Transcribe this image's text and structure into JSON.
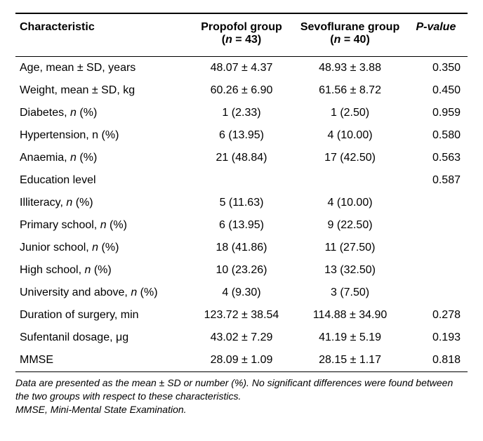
{
  "table": {
    "type": "table",
    "background_color": "#ffffff",
    "text_color": "#000000",
    "rule_color": "#000000",
    "font_family": "Arial",
    "body_fontsize": 15,
    "header_fontsize": 15,
    "columns": [
      {
        "key": "characteristic",
        "label": "Characteristic",
        "align": "left",
        "width_pct": 38
      },
      {
        "key": "propofol",
        "label": "Propofol group",
        "align": "center",
        "width_pct": 24,
        "n": 43
      },
      {
        "key": "sevoflurane",
        "label": "Sevoflurane group",
        "align": "center",
        "width_pct": 24,
        "n": 40
      },
      {
        "key": "pvalue",
        "label": "P-value",
        "align": "right",
        "width_pct": 14,
        "italic_header": true
      }
    ],
    "header_n_prefix": "(",
    "header_n_label": "n",
    "header_n_eq": " = ",
    "header_n_suffix": ")",
    "rows": [
      {
        "characteristic": "Age, mean ± SD, years",
        "propofol": "48.07 ± 4.37",
        "sevoflurane": "48.93 ± 3.88",
        "pvalue": "0.350"
      },
      {
        "characteristic": "Weight, mean ± SD, kg",
        "propofol": "60.26 ± 6.90",
        "sevoflurane": "61.56 ± 8.72",
        "pvalue": "0.450"
      },
      {
        "characteristic": "Diabetes, n (%)",
        "propofol": "1 (2.33)",
        "sevoflurane": "1 (2.50)",
        "pvalue": "0.959",
        "n_italic": true
      },
      {
        "characteristic": "Hypertension, n (%)",
        "propofol": "6 (13.95)",
        "sevoflurane": "4 (10.00)",
        "pvalue": "0.580"
      },
      {
        "characteristic": "Anaemia, n (%)",
        "propofol": "21 (48.84)",
        "sevoflurane": "17 (42.50)",
        "pvalue": "0.563",
        "n_italic": true
      },
      {
        "characteristic": "Education level",
        "propofol": "",
        "sevoflurane": "",
        "pvalue": "0.587"
      },
      {
        "characteristic": "Illiteracy, n (%)",
        "propofol": "5 (11.63)",
        "sevoflurane": "4 (10.00)",
        "pvalue": "",
        "n_italic": true
      },
      {
        "characteristic": "Primary school, n (%)",
        "propofol": "6 (13.95)",
        "sevoflurane": "9 (22.50)",
        "pvalue": "",
        "n_italic": true
      },
      {
        "characteristic": "Junior school, n (%)",
        "propofol": "18 (41.86)",
        "sevoflurane": "11 (27.50)",
        "pvalue": "",
        "n_italic": true
      },
      {
        "characteristic": "High school, n (%)",
        "propofol": "10 (23.26)",
        "sevoflurane": "13 (32.50)",
        "pvalue": "",
        "n_italic": true
      },
      {
        "characteristic": "University and above, n (%)",
        "propofol": "4 (9.30)",
        "sevoflurane": "3 (7.50)",
        "pvalue": "",
        "n_italic": true
      },
      {
        "characteristic": "Duration of surgery, min",
        "propofol": "123.72 ± 38.54",
        "sevoflurane": "114.88 ± 34.90",
        "pvalue": "0.278"
      },
      {
        "characteristic": "Sufentanil dosage, μg",
        "propofol": "43.02 ± 7.29",
        "sevoflurane": "41.19 ± 5.19",
        "pvalue": "0.193"
      },
      {
        "characteristic": "MMSE",
        "propofol": "28.09 ± 1.09",
        "sevoflurane": "28.15 ± 1.17",
        "pvalue": "0.818"
      }
    ]
  },
  "footnote": {
    "line1": "Data are presented as the mean ± SD or number (%). No significant differences were found between the two groups with respect to these characteristics.",
    "line2": "MMSE, Mini-Mental State Examination.",
    "fontsize": 14,
    "italic": true
  }
}
